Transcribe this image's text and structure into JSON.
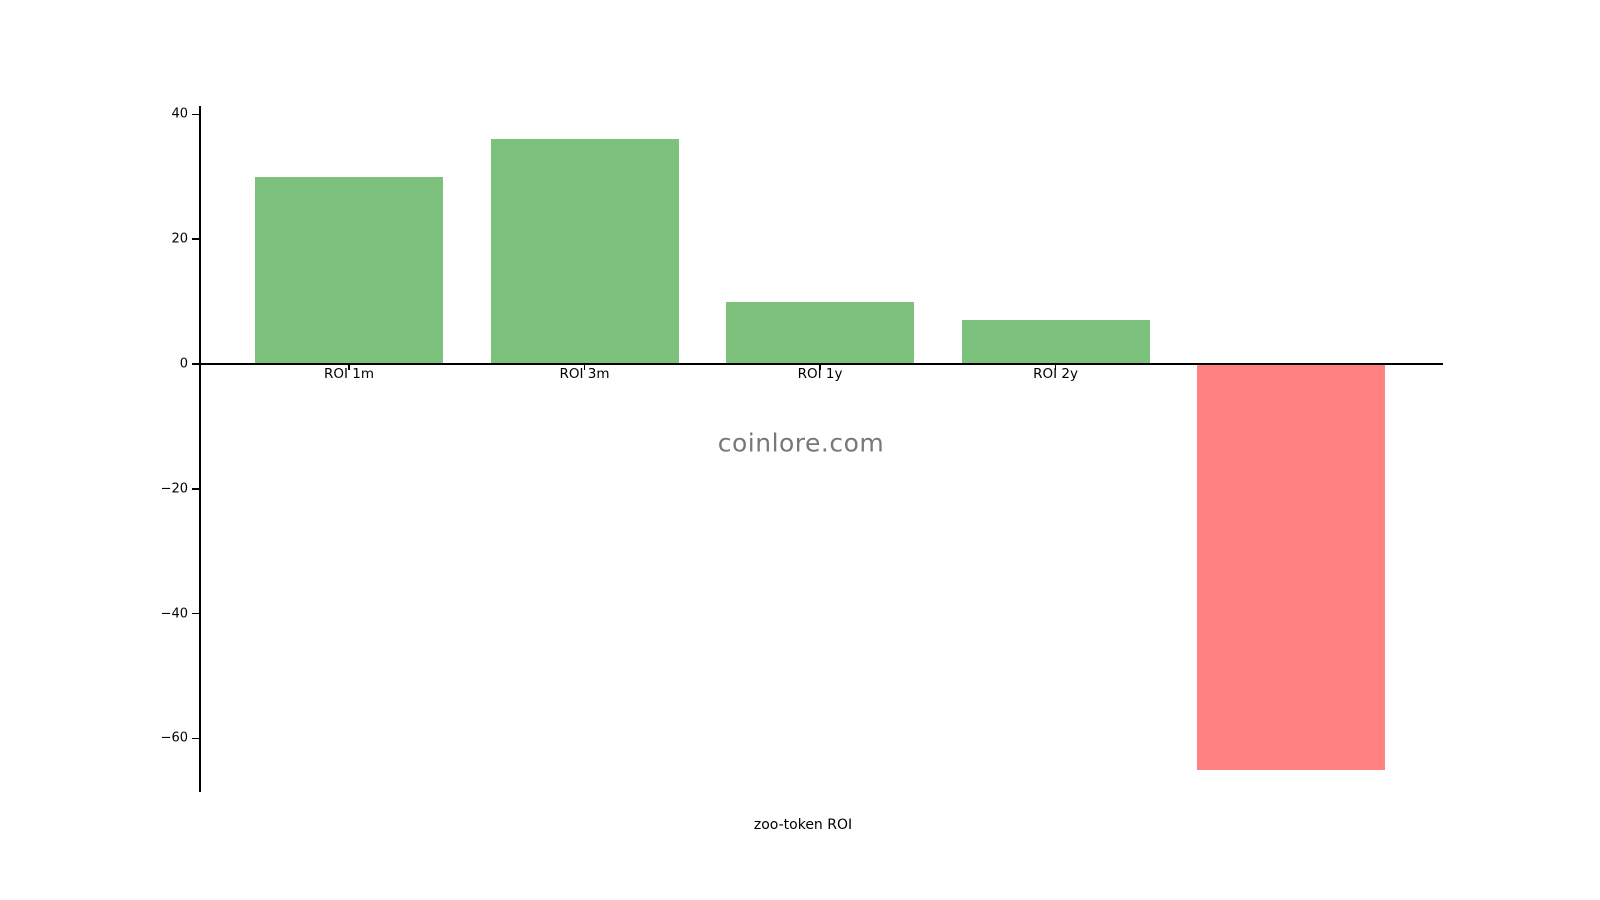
{
  "watermark": "coinlore.com",
  "chart_data": {
    "type": "bar",
    "title": "zoo-token ROI",
    "categories": [
      "ROI 1m",
      "ROI 3m",
      "ROI 1y",
      "ROI 2y",
      ""
    ],
    "values": [
      30,
      36,
      10,
      7,
      -65
    ],
    "yticks": [
      40,
      20,
      0,
      -20,
      -40,
      -60
    ],
    "ylim": [
      -68,
      41
    ],
    "xlabel": "",
    "ylabel": "",
    "grid": false,
    "legend": null,
    "colors": {
      "positive_bar": "#7cc17c",
      "negative_bar": "#ff8181",
      "axis": "#000000",
      "tick_label": "#000000",
      "watermark": "#787878"
    }
  }
}
